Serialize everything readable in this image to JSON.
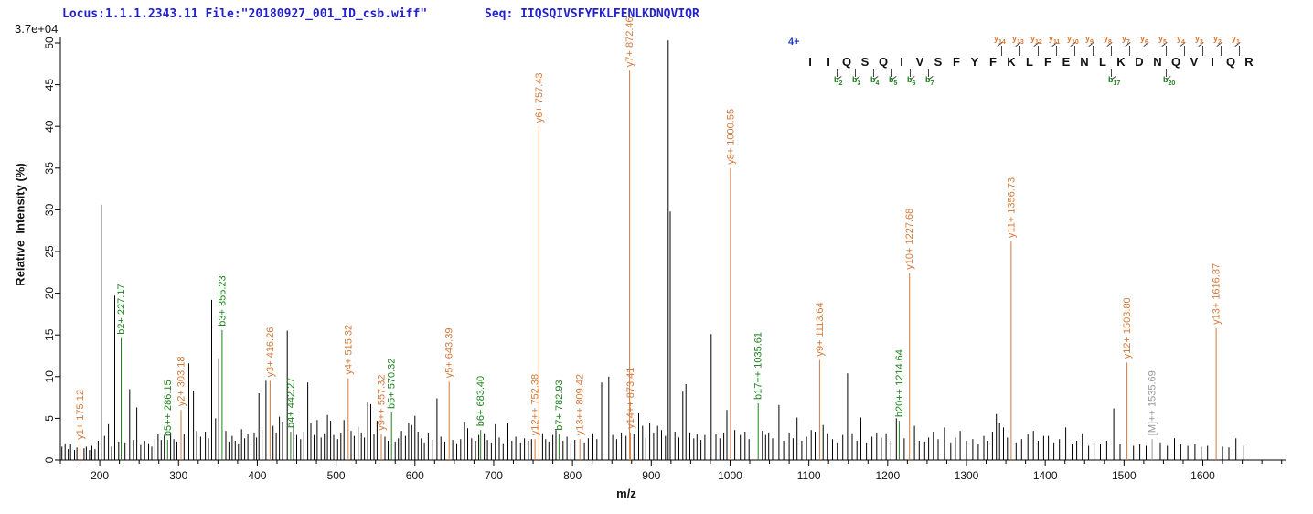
{
  "header": {
    "locus_file": "Locus:1.1.1.2343.11 File:\"20180927_001_ID_csb.wiff\"",
    "seq": "Seq: IIQSQIVSFYFKLFENLKDNQVIQR",
    "max_intensity": "3.7e+04"
  },
  "axes": {
    "ylabel": "Relative  Intensity (%)",
    "xlabel": "m/z",
    "yticks": [
      0,
      5,
      10,
      15,
      20,
      25,
      30,
      35,
      40,
      45,
      50
    ],
    "xtick_labels": [
      200,
      300,
      400,
      500,
      600,
      700,
      800,
      900,
      1000,
      1100,
      1200,
      1300,
      1400,
      1500,
      1600
    ],
    "x_minor_step": 25,
    "xlim": [
      150,
      1705
    ],
    "ylim": [
      0,
      50
    ]
  },
  "peptide": {
    "charge": "4+",
    "sequence": "IIQSQIVSFYFKLFENLKDNQVIQR",
    "y_ions": [
      {
        "n": 14,
        "i": 11
      },
      {
        "n": 13,
        "i": 12
      },
      {
        "n": 12,
        "i": 13
      },
      {
        "n": 11,
        "i": 14
      },
      {
        "n": 10,
        "i": 15
      },
      {
        "n": 9,
        "i": 16
      },
      {
        "n": 8,
        "i": 17
      },
      {
        "n": 7,
        "i": 18
      },
      {
        "n": 6,
        "i": 19
      },
      {
        "n": 5,
        "i": 20
      },
      {
        "n": 4,
        "i": 21
      },
      {
        "n": 3,
        "i": 22
      },
      {
        "n": 2,
        "i": 23
      },
      {
        "n": 1,
        "i": 24
      }
    ],
    "b_ions": [
      {
        "n": 2,
        "i": 2
      },
      {
        "n": 3,
        "i": 3
      },
      {
        "n": 4,
        "i": 4
      },
      {
        "n": 5,
        "i": 5
      },
      {
        "n": 6,
        "i": 6
      },
      {
        "n": 7,
        "i": 7
      },
      {
        "n": 17,
        "i": 17
      },
      {
        "n": 20,
        "i": 20
      }
    ]
  },
  "colors": {
    "y_ion": "#d4793a",
    "b_ion": "#1e821e",
    "precursor": "#999999",
    "peak": "#000000",
    "header_blue": "#2222cc"
  },
  "chart_data": {
    "type": "bar",
    "title": "MS/MS fragment spectrum",
    "xlabel": "m/z",
    "ylabel": "Relative  Intensity (%)",
    "xlim": [
      150,
      1705
    ],
    "ylim": [
      0,
      50
    ],
    "grid": false,
    "max_counts": "3.7e+04",
    "annotated_peaks": [
      {
        "ion": "y1+",
        "mz": 175.12,
        "intensity": 2.0,
        "type": "y"
      },
      {
        "ion": "b2+",
        "mz": 227.17,
        "intensity": 14.6,
        "type": "b"
      },
      {
        "ion": "b5++",
        "mz": 286.15,
        "intensity": 2.4,
        "type": "b"
      },
      {
        "ion": "y2+",
        "mz": 303.18,
        "intensity": 6.0,
        "type": "y"
      },
      {
        "ion": "b3+",
        "mz": 355.23,
        "intensity": 15.6,
        "type": "b"
      },
      {
        "ion": "y3+",
        "mz": 416.26,
        "intensity": 9.5,
        "type": "y"
      },
      {
        "ion": "b4+",
        "mz": 442.27,
        "intensity": 3.4,
        "type": "b"
      },
      {
        "ion": "y4+",
        "mz": 515.32,
        "intensity": 9.8,
        "type": "y"
      },
      {
        "ion": "y9++",
        "mz": 557.32,
        "intensity": 3.1,
        "type": "y"
      },
      {
        "ion": "b5+",
        "mz": 570.32,
        "intensity": 5.7,
        "type": "b"
      },
      {
        "ion": "y5+",
        "mz": 643.39,
        "intensity": 9.4,
        "type": "y"
      },
      {
        "ion": "b6+",
        "mz": 683.4,
        "intensity": 3.6,
        "type": "b"
      },
      {
        "ion": "y12++",
        "mz": 752.38,
        "intensity": 2.5,
        "type": "y"
      },
      {
        "ion": "y6+",
        "mz": 757.43,
        "intensity": 40.0,
        "type": "y"
      },
      {
        "ion": "b7+",
        "mz": 782.93,
        "intensity": 3.1,
        "type": "b"
      },
      {
        "ion": "y13++",
        "mz": 809.42,
        "intensity": 2.5,
        "type": "y"
      },
      {
        "ion": "y7+",
        "mz": 872.46,
        "intensity": 46.7,
        "type": "y"
      },
      {
        "ion": "y14++",
        "mz": 873.41,
        "intensity": 3.3,
        "type": "y"
      },
      {
        "ion": "y8+",
        "mz": 1000.55,
        "intensity": 35.0,
        "type": "y"
      },
      {
        "ion": "b17++",
        "mz": 1035.61,
        "intensity": 6.8,
        "type": "b"
      },
      {
        "ion": "y9+",
        "mz": 1113.64,
        "intensity": 12.0,
        "type": "y"
      },
      {
        "ion": "b20++",
        "mz": 1214.64,
        "intensity": 4.7,
        "type": "b"
      },
      {
        "ion": "y10+",
        "mz": 1227.68,
        "intensity": 22.4,
        "type": "y"
      },
      {
        "ion": "y11+",
        "mz": 1356.73,
        "intensity": 26.2,
        "type": "y"
      },
      {
        "ion": "y12+",
        "mz": 1503.8,
        "intensity": 11.7,
        "type": "y"
      },
      {
        "ion": "[M]++",
        "mz": 1535.69,
        "intensity": 2.5,
        "type": "precursor"
      },
      {
        "ion": "y13+",
        "mz": 1616.87,
        "intensity": 15.8,
        "type": "y"
      }
    ],
    "noise_peaks": [
      [
        152,
        1.6
      ],
      [
        156,
        2.0
      ],
      [
        160,
        1.3
      ],
      [
        163,
        1.9
      ],
      [
        168,
        1.2
      ],
      [
        171,
        1.5
      ],
      [
        180,
        1.4
      ],
      [
        183,
        1.6
      ],
      [
        187,
        1.2
      ],
      [
        190,
        1.7
      ],
      [
        194,
        1.3
      ],
      [
        198,
        2.3
      ],
      [
        202,
        30.6
      ],
      [
        206,
        2.9
      ],
      [
        211,
        4.3
      ],
      [
        215,
        1.6
      ],
      [
        219,
        19.7
      ],
      [
        224,
        2.2
      ],
      [
        232,
        2.1
      ],
      [
        238,
        8.5
      ],
      [
        243,
        2.4
      ],
      [
        247,
        6.3
      ],
      [
        252,
        1.8
      ],
      [
        257,
        2.3
      ],
      [
        262,
        2.0
      ],
      [
        266,
        1.6
      ],
      [
        270,
        2.6
      ],
      [
        274,
        3.1
      ],
      [
        278,
        2.4
      ],
      [
        282,
        2.9
      ],
      [
        290,
        3.3
      ],
      [
        294,
        2.5
      ],
      [
        298,
        2.2
      ],
      [
        307,
        3.1
      ],
      [
        313,
        11.6
      ],
      [
        319,
        8.3
      ],
      [
        323,
        3.5
      ],
      [
        328,
        2.8
      ],
      [
        334,
        3.4
      ],
      [
        338,
        2.6
      ],
      [
        342,
        19.2
      ],
      [
        347,
        5.0
      ],
      [
        351,
        12.2
      ],
      [
        360,
        3.5
      ],
      [
        364,
        2.2
      ],
      [
        368,
        2.9
      ],
      [
        372,
        2.3
      ],
      [
        376,
        2.0
      ],
      [
        380,
        3.7
      ],
      [
        384,
        2.6
      ],
      [
        388,
        3.1
      ],
      [
        392,
        2.4
      ],
      [
        396,
        3.3
      ],
      [
        399,
        2.7
      ],
      [
        402,
        8.0
      ],
      [
        406,
        3.6
      ],
      [
        411,
        9.5
      ],
      [
        420,
        4.1
      ],
      [
        424,
        3.3
      ],
      [
        428,
        5.2
      ],
      [
        432,
        4.6
      ],
      [
        438,
        15.5
      ],
      [
        446,
        4.2
      ],
      [
        450,
        3.0
      ],
      [
        455,
        2.5
      ],
      [
        459,
        3.4
      ],
      [
        464,
        9.3
      ],
      [
        468,
        4.4
      ],
      [
        472,
        3.0
      ],
      [
        476,
        4.8
      ],
      [
        481,
        2.7
      ],
      [
        485,
        3.2
      ],
      [
        489,
        5.4
      ],
      [
        493,
        4.7
      ],
      [
        497,
        3.0
      ],
      [
        502,
        2.5
      ],
      [
        506,
        3.3
      ],
      [
        510,
        4.8
      ],
      [
        519,
        3.5
      ],
      [
        523,
        2.9
      ],
      [
        528,
        4.0
      ],
      [
        532,
        3.3
      ],
      [
        536,
        2.7
      ],
      [
        540,
        6.9
      ],
      [
        544,
        6.7
      ],
      [
        548,
        3.1
      ],
      [
        552,
        4.7
      ],
      [
        562,
        2.8
      ],
      [
        566,
        2.3
      ],
      [
        575,
        2.2
      ],
      [
        579,
        2.6
      ],
      [
        583,
        3.5
      ],
      [
        588,
        2.9
      ],
      [
        592,
        4.5
      ],
      [
        596,
        4.2
      ],
      [
        600,
        5.3
      ],
      [
        604,
        3.4
      ],
      [
        608,
        2.6
      ],
      [
        612,
        2.1
      ],
      [
        617,
        3.3
      ],
      [
        622,
        2.4
      ],
      [
        628,
        7.4
      ],
      [
        633,
        2.8
      ],
      [
        638,
        2.2
      ],
      [
        648,
        2.4
      ],
      [
        653,
        2.0
      ],
      [
        658,
        2.5
      ],
      [
        663,
        4.6
      ],
      [
        667,
        3.8
      ],
      [
        672,
        2.6
      ],
      [
        677,
        2.3
      ],
      [
        681,
        3.0
      ],
      [
        688,
        3.2
      ],
      [
        692,
        2.4
      ],
      [
        697,
        2.1
      ],
      [
        702,
        4.3
      ],
      [
        707,
        2.7
      ],
      [
        712,
        2.0
      ],
      [
        718,
        4.4
      ],
      [
        723,
        2.3
      ],
      [
        728,
        2.8
      ],
      [
        734,
        2.1
      ],
      [
        739,
        2.6
      ],
      [
        744,
        2.3
      ],
      [
        748,
        2.5
      ],
      [
        762,
        3.2
      ],
      [
        766,
        2.5
      ],
      [
        770,
        2.2
      ],
      [
        775,
        3.0
      ],
      [
        779,
        3.6
      ],
      [
        788,
        2.3
      ],
      [
        793,
        2.8
      ],
      [
        798,
        2.1
      ],
      [
        803,
        2.4
      ],
      [
        815,
        2.1
      ],
      [
        820,
        2.6
      ],
      [
        826,
        3.2
      ],
      [
        831,
        2.5
      ],
      [
        837,
        9.3
      ],
      [
        846,
        10.0
      ],
      [
        851,
        3.0
      ],
      [
        856,
        2.5
      ],
      [
        862,
        3.3
      ],
      [
        868,
        2.9
      ],
      [
        878,
        3.1
      ],
      [
        884,
        5.6
      ],
      [
        889,
        4.1
      ],
      [
        893,
        2.7
      ],
      [
        898,
        4.4
      ],
      [
        903,
        3.3
      ],
      [
        908,
        4.1
      ],
      [
        913,
        3.6
      ],
      [
        918,
        2.9
      ],
      [
        921.5,
        50.3
      ],
      [
        924,
        29.8
      ],
      [
        930,
        3.4
      ],
      [
        935,
        2.7
      ],
      [
        940,
        8.2
      ],
      [
        944,
        9.1
      ],
      [
        949,
        3.3
      ],
      [
        954,
        2.6
      ],
      [
        958,
        3.1
      ],
      [
        963,
        2.4
      ],
      [
        968,
        3.0
      ],
      [
        976,
        15.1
      ],
      [
        982,
        3.1
      ],
      [
        987,
        2.6
      ],
      [
        992,
        3.3
      ],
      [
        996,
        6.0
      ],
      [
        1006,
        3.6
      ],
      [
        1013,
        3.0
      ],
      [
        1019,
        3.4
      ],
      [
        1024,
        2.5
      ],
      [
        1029,
        2.9
      ],
      [
        1041,
        3.5
      ],
      [
        1045,
        3.0
      ],
      [
        1049,
        3.3
      ],
      [
        1054,
        2.6
      ],
      [
        1062,
        6.6
      ],
      [
        1068,
        2.3
      ],
      [
        1075,
        3.3
      ],
      [
        1080,
        2.6
      ],
      [
        1085,
        5.1
      ],
      [
        1091,
        2.3
      ],
      [
        1097,
        2.8
      ],
      [
        1103,
        3.6
      ],
      [
        1108,
        3.4
      ],
      [
        1118,
        4.2
      ],
      [
        1124,
        3.2
      ],
      [
        1130,
        2.5
      ],
      [
        1136,
        2.1
      ],
      [
        1143,
        3.0
      ],
      [
        1149,
        10.4
      ],
      [
        1155,
        3.2
      ],
      [
        1161,
        2.3
      ],
      [
        1166,
        5.1
      ],
      [
        1173,
        2.1
      ],
      [
        1180,
        2.8
      ],
      [
        1186,
        3.3
      ],
      [
        1192,
        2.7
      ],
      [
        1198,
        3.2
      ],
      [
        1204,
        2.3
      ],
      [
        1211,
        5.0
      ],
      [
        1221,
        2.6
      ],
      [
        1234,
        4.1
      ],
      [
        1240,
        2.3
      ],
      [
        1247,
        2.2
      ],
      [
        1252,
        2.7
      ],
      [
        1258,
        3.4
      ],
      [
        1264,
        2.5
      ],
      [
        1272,
        3.9
      ],
      [
        1280,
        2.1
      ],
      [
        1286,
        2.7
      ],
      [
        1292,
        3.5
      ],
      [
        1300,
        2.3
      ],
      [
        1308,
        2.5
      ],
      [
        1315,
        1.9
      ],
      [
        1322,
        2.9
      ],
      [
        1327,
        2.3
      ],
      [
        1333,
        3.4
      ],
      [
        1338,
        5.5
      ],
      [
        1342,
        4.5
      ],
      [
        1347,
        3.9
      ],
      [
        1352,
        2.7
      ],
      [
        1363,
        2.1
      ],
      [
        1370,
        2.5
      ],
      [
        1378,
        3.1
      ],
      [
        1385,
        3.5
      ],
      [
        1391,
        2.3
      ],
      [
        1398,
        2.9
      ],
      [
        1404,
        2.9
      ],
      [
        1411,
        2.1
      ],
      [
        1418,
        2.5
      ],
      [
        1426,
        3.9
      ],
      [
        1434,
        1.9
      ],
      [
        1440,
        2.3
      ],
      [
        1447,
        3.2
      ],
      [
        1455,
        1.7
      ],
      [
        1462,
        2.1
      ],
      [
        1470,
        1.9
      ],
      [
        1478,
        2.3
      ],
      [
        1487,
        6.2
      ],
      [
        1495,
        1.9
      ],
      [
        1512,
        1.7
      ],
      [
        1520,
        1.9
      ],
      [
        1528,
        1.7
      ],
      [
        1546,
        2.1
      ],
      [
        1555,
        1.7
      ],
      [
        1564,
        2.6
      ],
      [
        1572,
        1.9
      ],
      [
        1581,
        1.7
      ],
      [
        1590,
        1.9
      ],
      [
        1598,
        1.6
      ],
      [
        1606,
        1.7
      ],
      [
        1625,
        1.6
      ],
      [
        1633,
        1.5
      ],
      [
        1642,
        2.6
      ],
      [
        1652,
        1.7
      ]
    ]
  }
}
